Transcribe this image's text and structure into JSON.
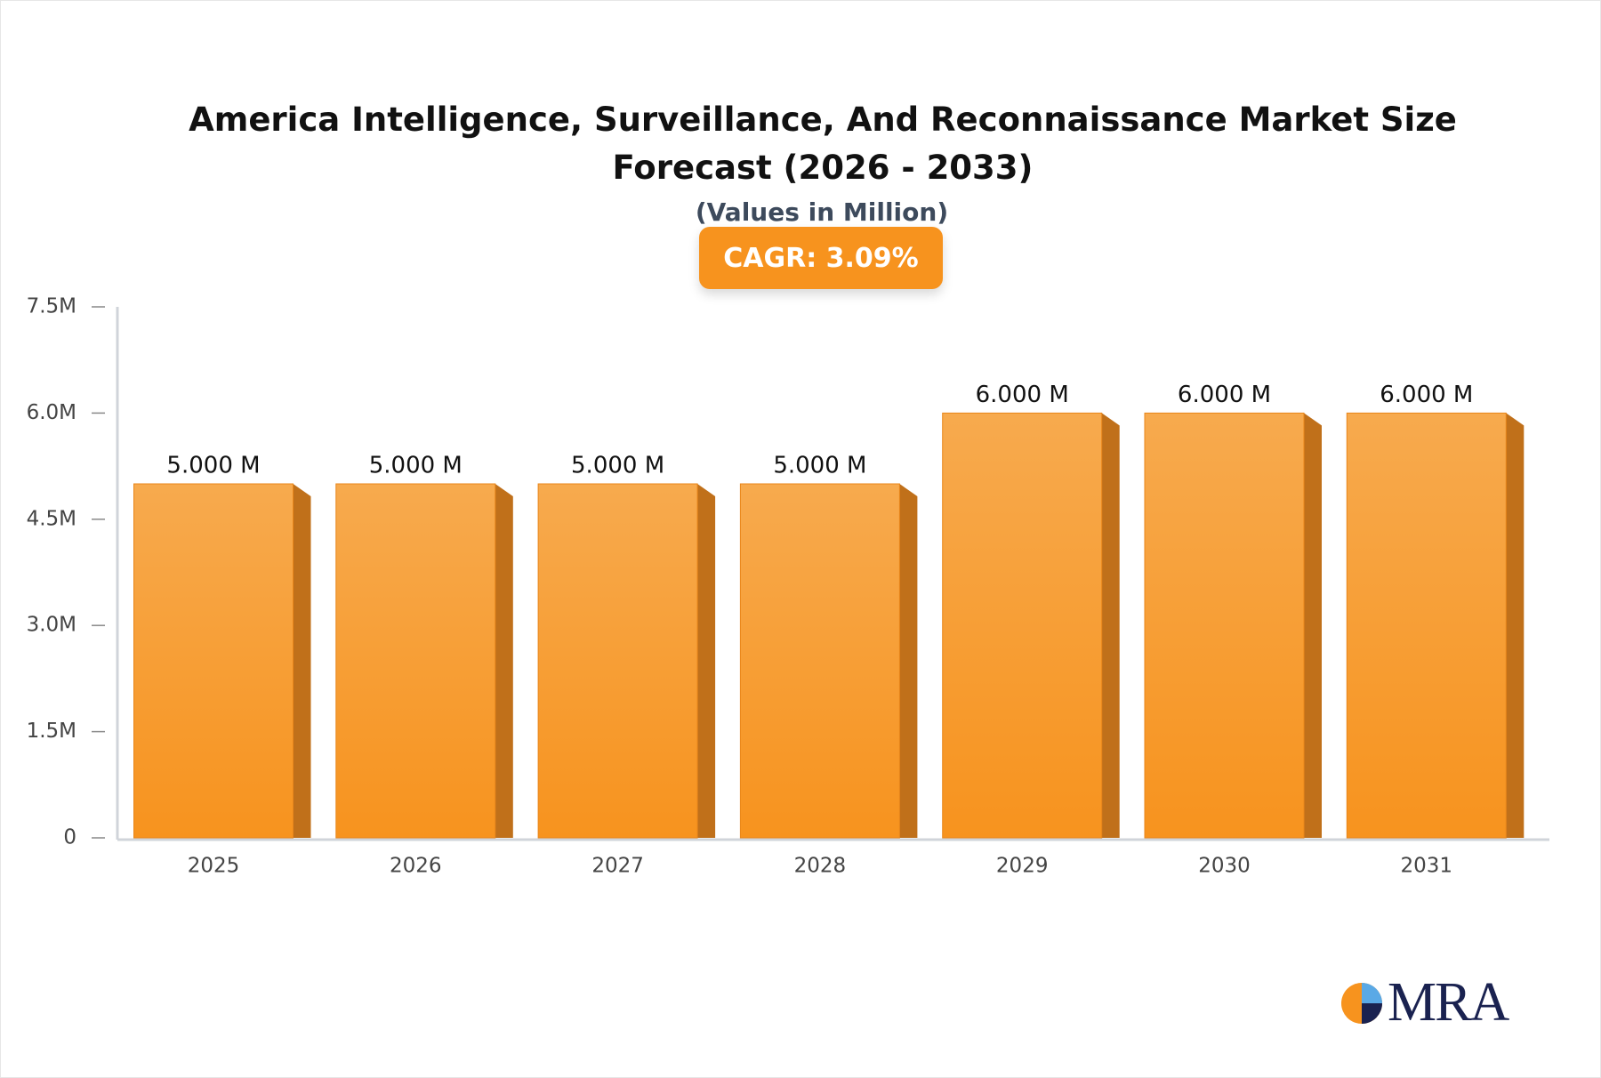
{
  "chart_data": {
    "type": "bar",
    "title": "America Intelligence, Surveillance, And Reconnaissance Market Size Forecast (2026 - 2033)",
    "subtitle": "(Values in Million)",
    "annotation": "CAGR: 3.09%",
    "categories": [
      "2025",
      "2026",
      "2027",
      "2028",
      "2029",
      "2030",
      "2031"
    ],
    "values": [
      5,
      5,
      5,
      5,
      6,
      6,
      6
    ],
    "value_labels": [
      "5.000 M",
      "5.000 M",
      "5.000 M",
      "5.000 M",
      "6.000 M",
      "6.000 M",
      "6.000 M"
    ],
    "color": "#f7931e",
    "ylim": [
      0,
      7.5
    ],
    "yticks": [
      0,
      {
        "value": 1.5,
        "label": "1.5M"
      },
      {
        "value": 3,
        "label": "3.0M"
      },
      {
        "value": 4.5,
        "label": "4.5M"
      },
      {
        "value": 6,
        "label": "6.0M"
      },
      {
        "value": 7.5,
        "label": "7.5M"
      }
    ],
    "grid": false
  },
  "logo": "MRA"
}
